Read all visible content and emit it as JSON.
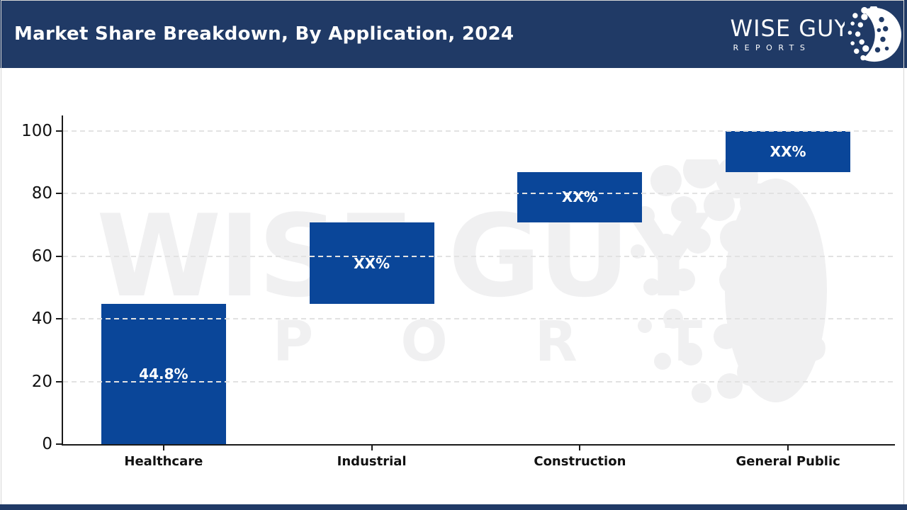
{
  "header": {
    "title": "Market Share Breakdown, By Application, 2024",
    "background_color": "#203A66",
    "logo": {
      "line1": "WISE GUY",
      "line2": "REPORTS"
    }
  },
  "watermark": {
    "line1": "WISE GUY",
    "line2": "P O R T S",
    "color": "#F0F0F1"
  },
  "footer": {
    "background_color": "#203A66"
  },
  "chart_data": {
    "type": "bar",
    "variant": "waterfall",
    "title": "Market Share Breakdown, By Application, 2024",
    "categories": [
      "Healthcare",
      "Industrial",
      "Construction",
      "General Public"
    ],
    "series": [
      {
        "name": "Healthcare",
        "start": 0,
        "end": 44.8,
        "value_label": "44.8%"
      },
      {
        "name": "Industrial",
        "start": 44.8,
        "end": 70.8,
        "value_label": "XX%"
      },
      {
        "name": "Construction",
        "start": 70.8,
        "end": 86.9,
        "value_label": "XX%"
      },
      {
        "name": "General Public",
        "start": 86.9,
        "end": 100,
        "value_label": "XX%"
      }
    ],
    "ylim": [
      0,
      100
    ],
    "yticks": [
      0,
      20,
      40,
      60,
      80,
      100
    ],
    "xlabel": "",
    "ylabel": "",
    "grid": "horizontal-dashed",
    "legend_position": "none",
    "bar_color": "#0A4699",
    "bar_label_color": "#FFFFFF",
    "axis_color": "#1A1A1A",
    "grid_color": "#E2E2E2",
    "tick_label_color": "#111111"
  }
}
